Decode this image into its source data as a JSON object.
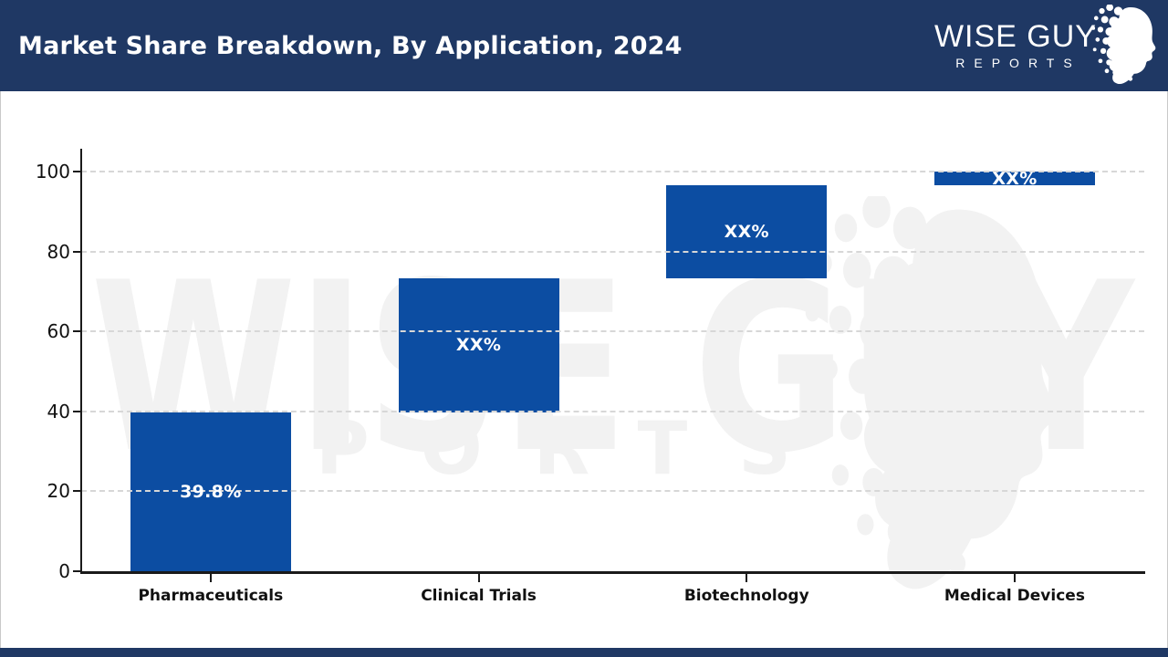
{
  "header": {
    "title": "Market Share Breakdown, By Application, 2024",
    "logo": {
      "line1": "WISE GUY",
      "line2": "REPORTS"
    }
  },
  "watermark": {
    "line1": "WISE GUY",
    "line2": "PORTS"
  },
  "chart_data": {
    "type": "bar",
    "subtype": "waterfall",
    "title": "Market Share Breakdown, By Application, 2024",
    "categories": [
      "Pharmaceuticals",
      "Clinical Trials",
      "Biotechnology",
      "Medical Devices"
    ],
    "bars": [
      {
        "category": "Pharmaceuticals",
        "start": 0,
        "end": 39.8,
        "value": 39.8,
        "label": "39.8%"
      },
      {
        "category": "Clinical Trials",
        "start": 39.8,
        "end": 73.4,
        "value": 33.6,
        "label": "XX%"
      },
      {
        "category": "Biotechnology",
        "start": 73.4,
        "end": 96.5,
        "value": 23.1,
        "label": "XX%"
      },
      {
        "category": "Medical Devices",
        "start": 96.5,
        "end": 100,
        "value": 3.5,
        "label": "XX%"
      }
    ],
    "ylim": [
      0,
      100
    ],
    "yticks": [
      0,
      20,
      40,
      60,
      80,
      100
    ],
    "xlabel": "",
    "ylabel": "",
    "grid": "horizontal-dashed",
    "legend": "none",
    "bar_color": "#0c4da2",
    "bar_label_color": "#ffffff"
  },
  "colors": {
    "header_bg": "#1f3864",
    "footer_bg": "#1f3864",
    "bar": "#0c4da2",
    "gridline": "#d7d7d7",
    "axis": "#1a1a1a",
    "watermark": "#f2f2f2",
    "page_border": "#c9c9c9"
  }
}
